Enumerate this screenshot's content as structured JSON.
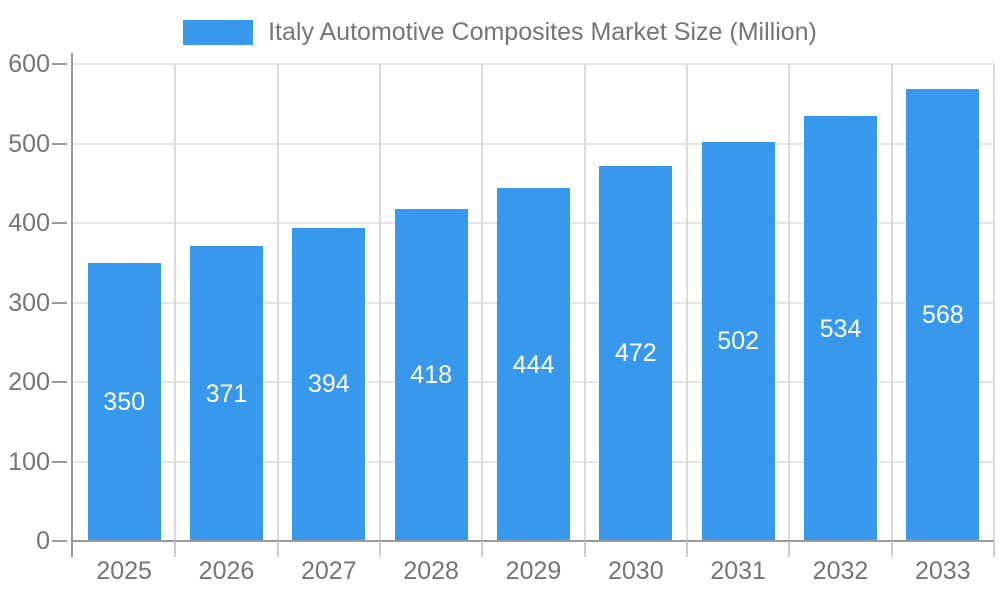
{
  "chart_data": {
    "type": "bar",
    "title": "Italy Automotive Composites Market Size (Million)",
    "legend": "Italy Automotive Composites Market Size (Million)",
    "legend_position": "top-center",
    "categories": [
      "2025",
      "2026",
      "2027",
      "2028",
      "2029",
      "2030",
      "2031",
      "2032",
      "2033"
    ],
    "values": [
      350,
      371,
      394,
      418,
      444,
      472,
      502,
      534,
      568
    ],
    "xlabel": "",
    "ylabel": "",
    "ylim": [
      0,
      600
    ],
    "ytick_step": 100,
    "yticks": [
      0,
      100,
      200,
      300,
      400,
      500,
      600
    ],
    "grid": true,
    "colors": {
      "bar": "#3899EC",
      "bar_label": "#FFFFFF",
      "text": "#757575",
      "axis": "#999999",
      "grid_h": "#E5E5E5",
      "grid_v": "#DBDBDB",
      "tick": "#CCCCCC"
    }
  }
}
